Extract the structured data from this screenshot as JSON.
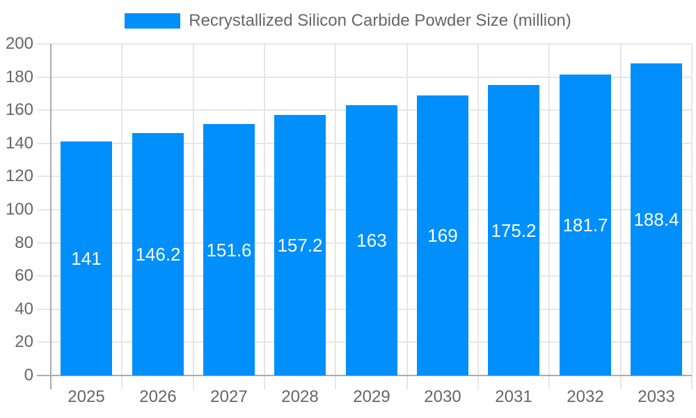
{
  "chart_data": {
    "type": "bar",
    "title": "",
    "legend": {
      "label": "Recrystallized Silicon Carbide Powder Size (million)",
      "position": "top"
    },
    "categories": [
      "2025",
      "2026",
      "2027",
      "2028",
      "2029",
      "2030",
      "2031",
      "2032",
      "2033"
    ],
    "series": [
      {
        "name": "Recrystallized Silicon Carbide Powder Size (million)",
        "values": [
          141,
          146.2,
          151.6,
          157.2,
          163,
          169,
          175.2,
          181.7,
          188.4
        ]
      }
    ],
    "value_labels": [
      "141",
      "146.2",
      "151.6",
      "157.2",
      "163",
      "169",
      "175.2",
      "181.7",
      "188.4"
    ],
    "xlabel": "",
    "ylabel": "",
    "ylim": [
      0,
      200
    ],
    "ytick_step": 20,
    "yticks": [
      "0",
      "20",
      "40",
      "60",
      "80",
      "100",
      "120",
      "140",
      "160",
      "180",
      "200"
    ],
    "grid": true,
    "legend_position": "top",
    "colors": {
      "bar": "#008FFB",
      "axis_text": "#666666",
      "value_label": "#ffffff",
      "gridline": "#e6e6e6",
      "zero_line": "#ababab",
      "background": "#ffffff"
    }
  }
}
